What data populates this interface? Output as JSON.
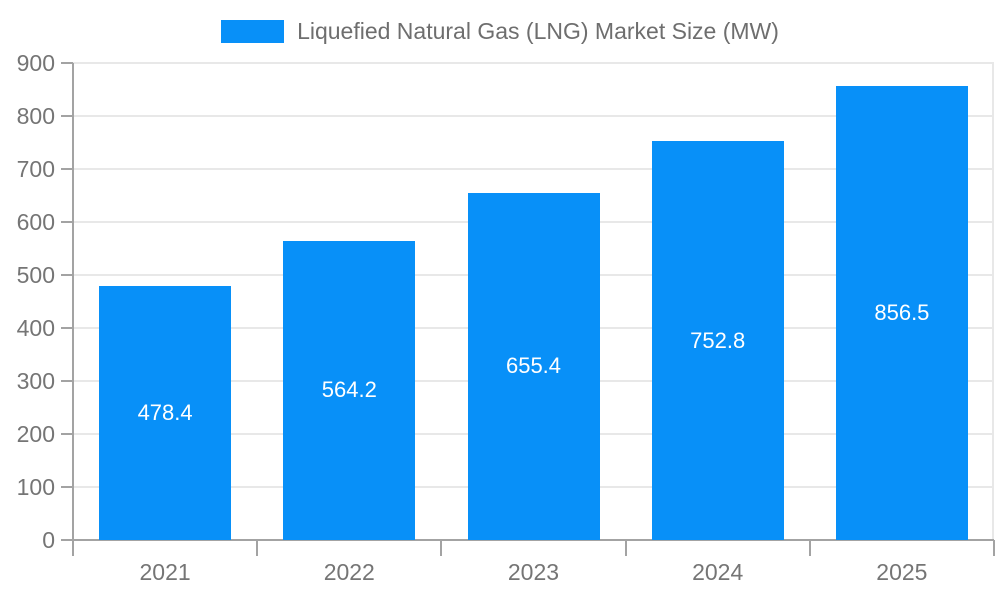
{
  "legend": {
    "label": "Liquefied Natural Gas (LNG) Market Size (MW)"
  },
  "colors": {
    "bar": "#0890f8",
    "axis_line": "#a3a3a3",
    "grid_line": "#e8e8e8",
    "tick_label": "#757575",
    "legend_text": "#6e6e6e",
    "bar_label": "#ffffff",
    "background": "#ffffff"
  },
  "chart_data": {
    "type": "bar",
    "title": "Liquefied Natural Gas (LNG) Market Size (MW)",
    "categories": [
      "2021",
      "2022",
      "2023",
      "2024",
      "2025"
    ],
    "values": [
      478.4,
      564.2,
      655.4,
      752.8,
      856.5
    ],
    "value_labels": [
      "478.4",
      "564.2",
      "655.4",
      "752.8",
      "856.5"
    ],
    "series": [
      {
        "name": "Liquefied Natural Gas (LNG) Market Size (MW)",
        "values": [
          478.4,
          564.2,
          655.4,
          752.8,
          856.5
        ]
      }
    ],
    "xlabel": "",
    "ylabel": "",
    "ylim": [
      0,
      900
    ],
    "yticks": [
      0,
      100,
      200,
      300,
      400,
      500,
      600,
      700,
      800,
      900
    ],
    "grid": true,
    "legend_position": "top",
    "bar_value_labels_inside": true
  }
}
